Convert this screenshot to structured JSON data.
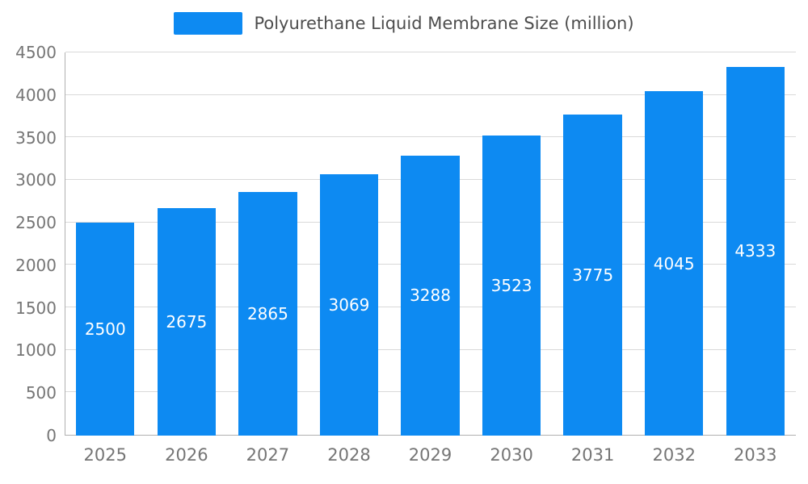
{
  "chart_data": {
    "type": "bar",
    "title": "Polyurethane Liquid Membrane Size (million)",
    "categories": [
      "2025",
      "2026",
      "2027",
      "2028",
      "2029",
      "2030",
      "2031",
      "2032",
      "2033"
    ],
    "values": [
      2500,
      2675,
      2865,
      3069,
      3288,
      3523,
      3775,
      4045,
      4333
    ],
    "xlabel": "",
    "ylabel": "",
    "ylim": [
      0,
      4500
    ],
    "ytick_step": 500,
    "grid": true,
    "legend_position": "top",
    "data_labels": "inside-center"
  },
  "legend": {
    "label": "Polyurethane Liquid Membrane Size (million)"
  },
  "colors": {
    "bar": "#0d8af2",
    "bar_label": "#ffffff",
    "axis_text": "#757575",
    "legend_text": "#4d4d4d",
    "gridline": "#d9d9d9",
    "axis_line": "#b0b0b0"
  }
}
